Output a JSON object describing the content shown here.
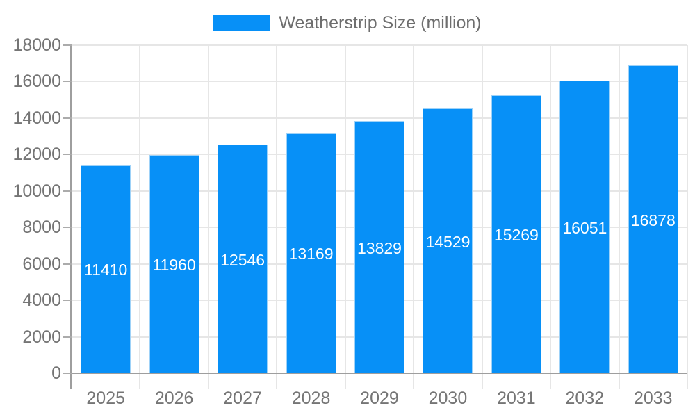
{
  "legend": {
    "label": "Weatherstrip Size (million)"
  },
  "chart_data": {
    "type": "bar",
    "title": "",
    "categories": [
      "2025",
      "2026",
      "2027",
      "2028",
      "2029",
      "2030",
      "2031",
      "2032",
      "2033"
    ],
    "series": [
      {
        "name": "Weatherstrip Size (million)",
        "values": [
          11410,
          11960,
          12546,
          13169,
          13829,
          14529,
          15269,
          16051,
          16878
        ]
      }
    ],
    "xlabel": "",
    "ylabel": "",
    "ylim": [
      0,
      18000
    ],
    "ytick_step": 2000,
    "grid": true,
    "legend_position": "top-center",
    "value_labels": "centered-in-bar",
    "colors": {
      "bar_fill": "#0790f7",
      "bar_stroke": "#9ed2f8",
      "value_label": "#ffffff",
      "axis_label": "#757575",
      "legend_text": "#6e6e6e",
      "gridline": "#e6e6e6",
      "axis_line": "#9e9e9e",
      "background": "#ffffff"
    }
  }
}
